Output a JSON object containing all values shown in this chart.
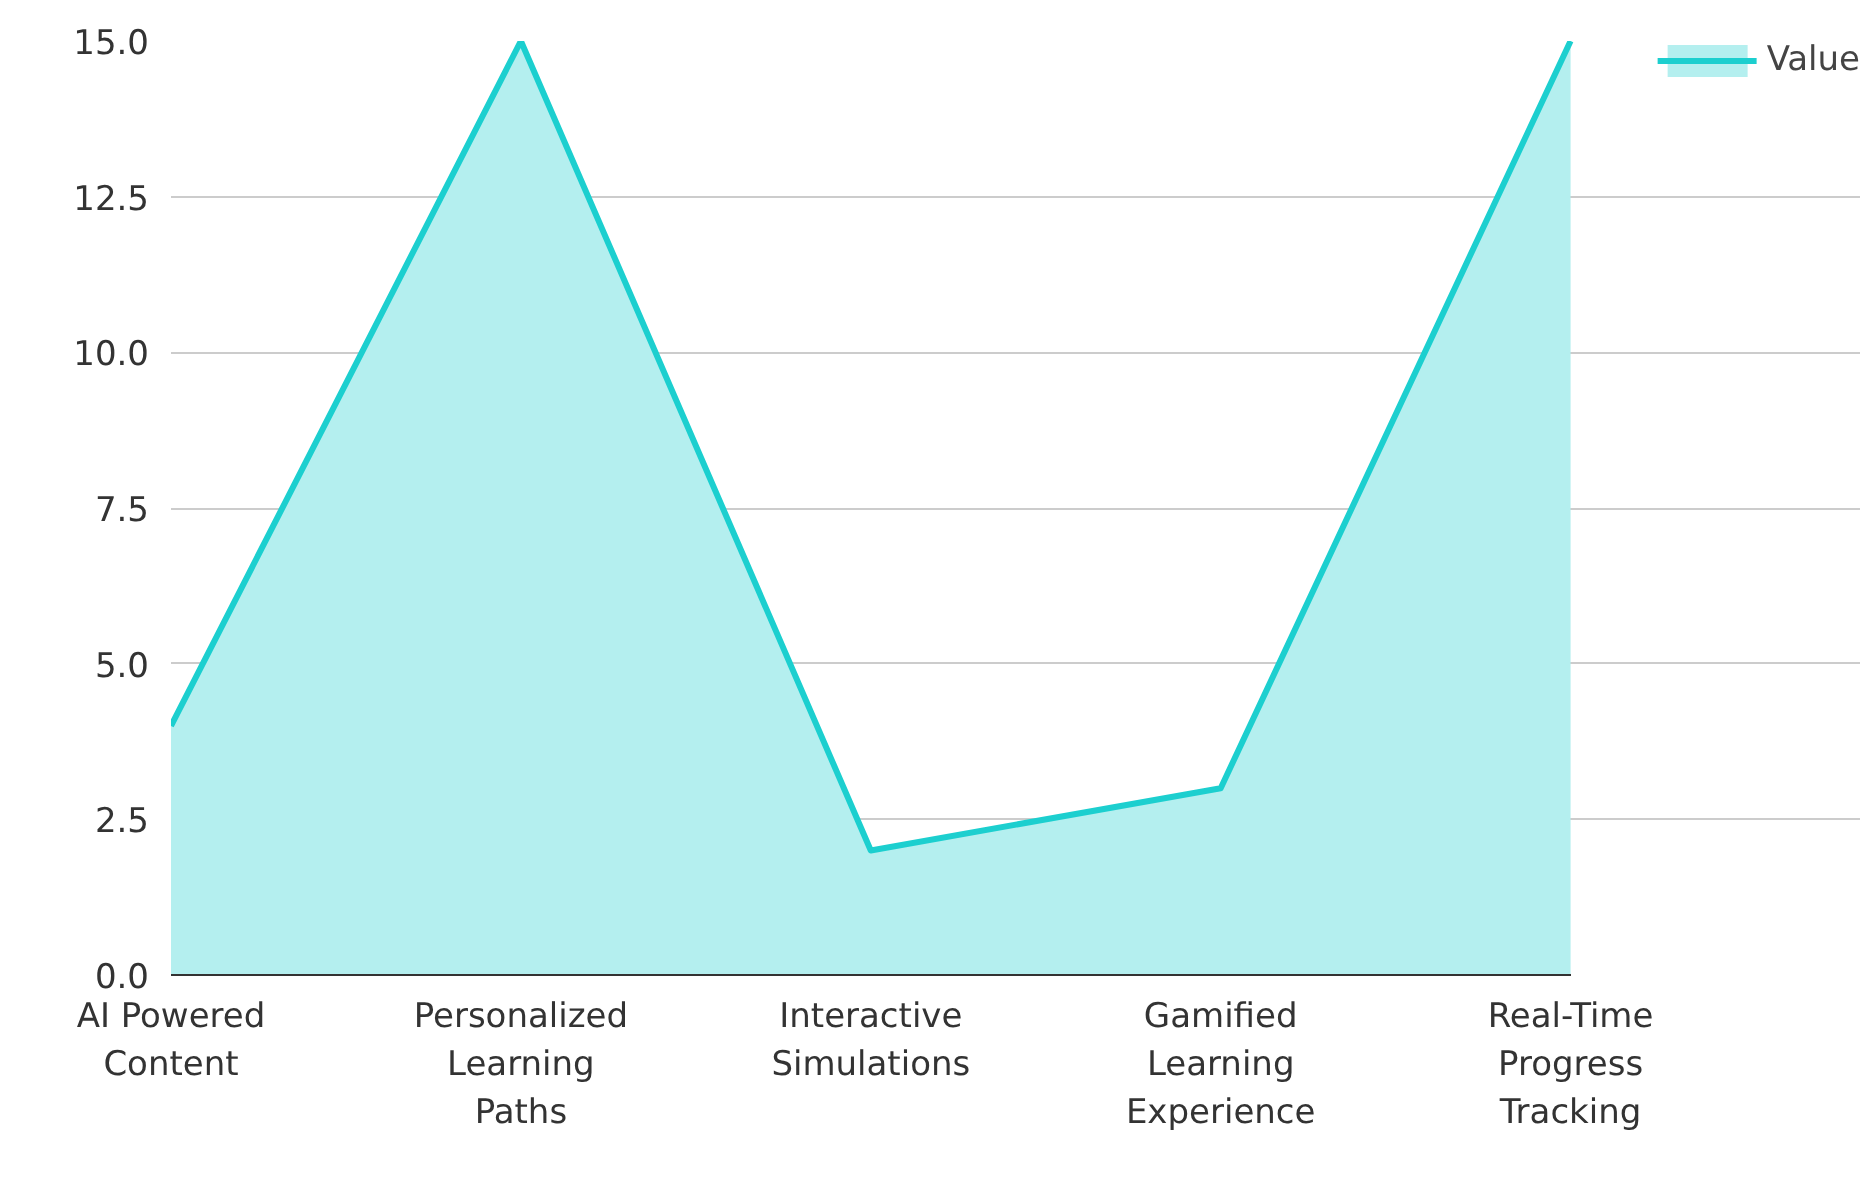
{
  "chart_data": {
    "type": "area",
    "categories": [
      "AI Powered Content",
      "Personalized Learning Paths",
      "Interactive Simulations",
      "Gamified Learning Experience",
      "Real-Time Progress Tracking"
    ],
    "series": [
      {
        "name": "Value",
        "color": "#1ccfcf",
        "values": [
          4,
          15,
          2,
          3,
          15
        ]
      }
    ],
    "ylim": [
      0,
      15
    ],
    "yticks": [
      {
        "value": 0,
        "label": "0.0"
      },
      {
        "value": 2.5,
        "label": "2.5"
      },
      {
        "value": 5,
        "label": "5.0"
      },
      {
        "value": 7.5,
        "label": "7.5"
      },
      {
        "value": 10,
        "label": "10.0"
      },
      {
        "value": 12.5,
        "label": "12.5"
      },
      {
        "value": 15,
        "label": "15.0"
      }
    ],
    "grid": "y",
    "legend": "top right"
  }
}
